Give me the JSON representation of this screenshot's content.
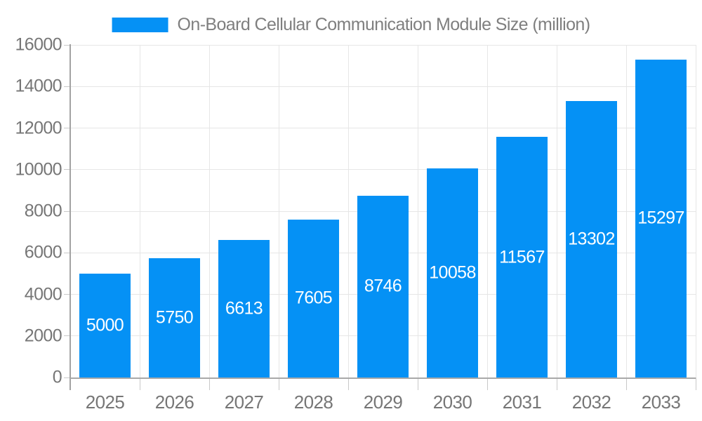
{
  "legend": {
    "label": "On-Board Cellular Communication Module Size (million)"
  },
  "chart_data": {
    "type": "bar",
    "title": "On-Board Cellular Communication Module Size (million)",
    "categories": [
      "2025",
      "2026",
      "2027",
      "2028",
      "2029",
      "2030",
      "2031",
      "2032",
      "2033"
    ],
    "values": [
      5000,
      5750,
      6613,
      7605,
      8746,
      10058,
      11567,
      13302,
      15297
    ],
    "xlabel": "",
    "ylabel": "",
    "ylim": [
      0,
      16000
    ],
    "yticks": [
      0,
      2000,
      4000,
      6000,
      8000,
      10000,
      12000,
      14000,
      16000
    ],
    "grid": true,
    "legend_position": "top-center",
    "bar_color": "#0591f5",
    "value_label_color": "#ffffff",
    "axis_text_color": "#767676",
    "gridline_color": "#e6e6e6",
    "axis_line_color": "#a3a3a3"
  }
}
